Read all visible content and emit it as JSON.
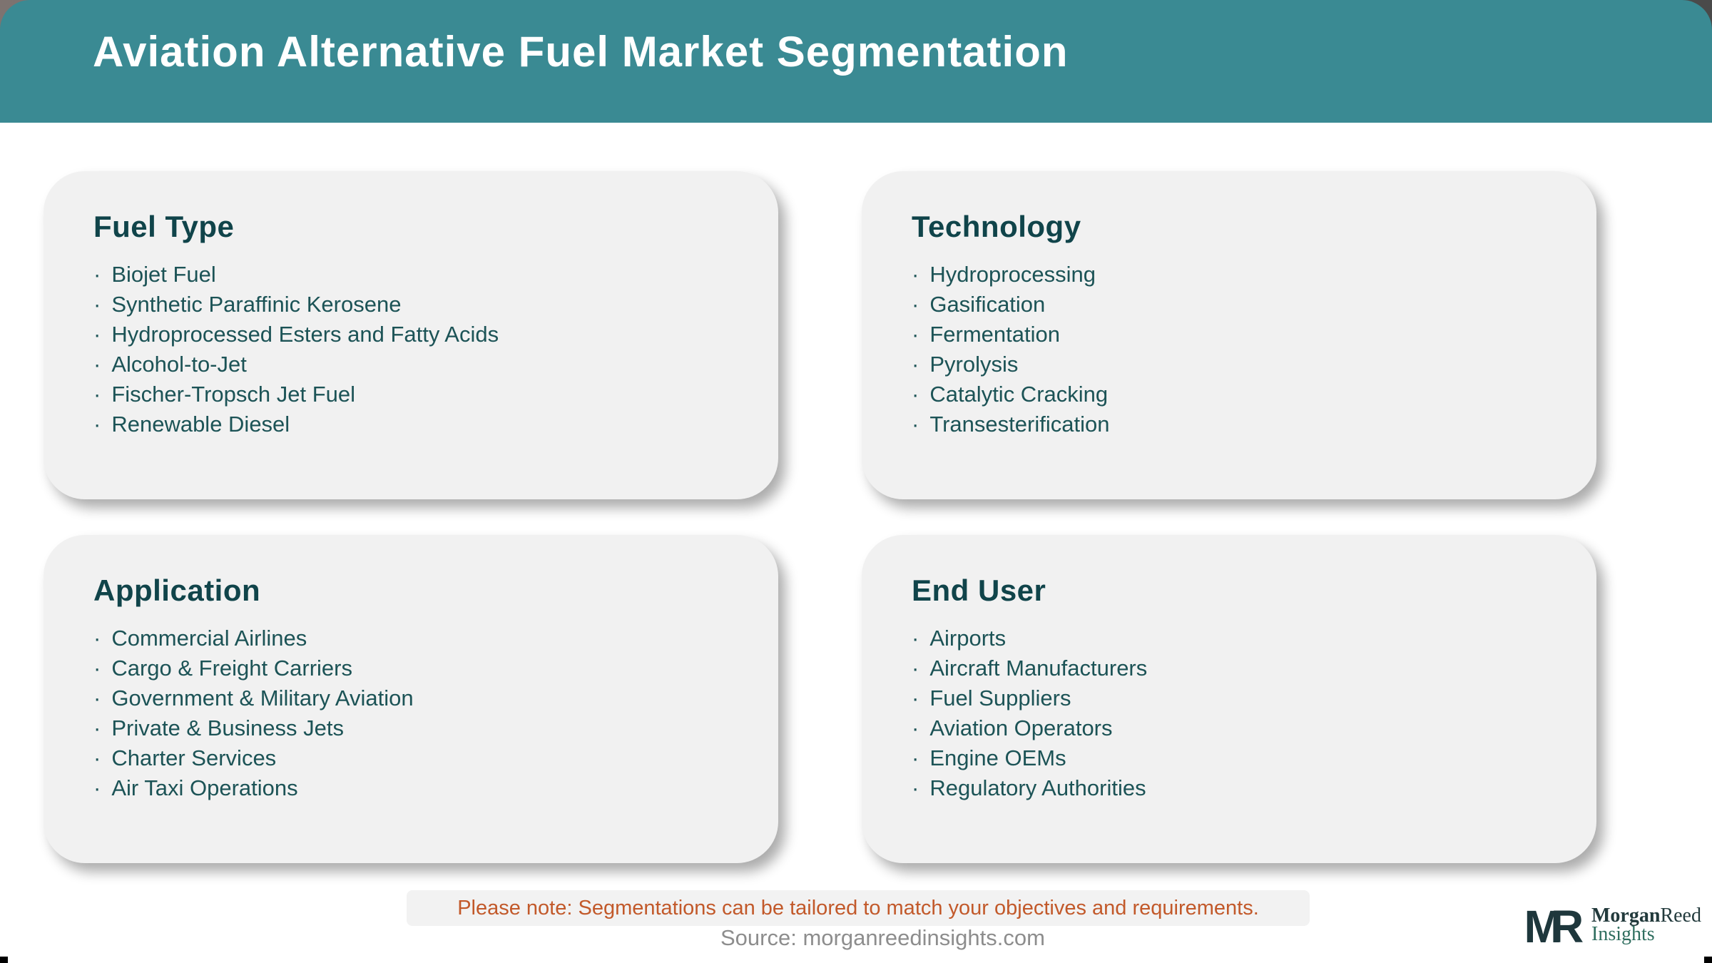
{
  "header": {
    "title": "Aviation Alternative Fuel Market Segmentation"
  },
  "bullet_char": "·",
  "cards": [
    {
      "title": "Fuel Type",
      "items": [
        "Biojet Fuel",
        "Synthetic Paraffinic Kerosene",
        "Hydroprocessed Esters and Fatty Acids",
        "Alcohol-to-Jet",
        "Fischer-Tropsch Jet Fuel",
        "Renewable Diesel"
      ]
    },
    {
      "title": "Technology",
      "items": [
        "Hydroprocessing",
        "Gasification",
        "Fermentation",
        "Pyrolysis",
        "Catalytic Cracking",
        "Transesterification"
      ]
    },
    {
      "title": "Application",
      "items": [
        "Commercial Airlines",
        "Cargo & Freight Carriers",
        "Government & Military Aviation",
        "Private & Business Jets",
        "Charter Services",
        "Air Taxi Operations"
      ]
    },
    {
      "title": "End User",
      "items": [
        "Airports",
        "Aircraft Manufacturers",
        "Fuel Suppliers",
        "Aviation Operators",
        "Engine OEMs",
        "Regulatory Authorities"
      ]
    }
  ],
  "note": {
    "text": "Please note: Segmentations can be tailored to match your objectives and requirements."
  },
  "source": {
    "text": "Source: morganreedinsights.com"
  },
  "logo": {
    "monogram_m": "M",
    "monogram_r": "R",
    "name_bold": "Morgan",
    "name_regular": "Reed",
    "subtitle": "Insights"
  },
  "colors": {
    "header_bg": "#3a8a93",
    "card_bg": "#f1f1f1",
    "card_title_text": "#10444a",
    "card_item_text": "#1c5356",
    "note_text": "#c2592a",
    "source_text": "#8d8d8d",
    "logo_dark": "#1e373c",
    "logo_teal": "#2f6e5f"
  }
}
